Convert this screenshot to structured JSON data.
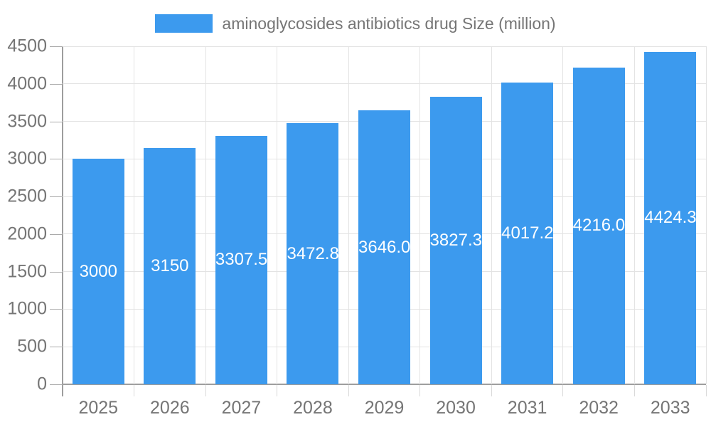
{
  "colors": {
    "accent": "#3c9aee",
    "axis_text": "#757575",
    "grid": "#e3e3e3",
    "axis_line": "#9e9e9e",
    "bar_label": "#ffffff"
  },
  "chart_data": {
    "type": "bar",
    "title": "aminoglycosides antibiotics drug Size (million)",
    "xlabel": "",
    "ylabel": "",
    "categories": [
      "2025",
      "2026",
      "2027",
      "2028",
      "2029",
      "2030",
      "2031",
      "2032",
      "2033"
    ],
    "values": [
      3000,
      3150,
      3307.5,
      3472.87,
      3646.01,
      3827.31,
      4017.23,
      4216.09,
      4424.39
    ],
    "value_labels": [
      "3000",
      "3150",
      "3307.5",
      "3472.87",
      "3646.01",
      "3827.31",
      "4017.23",
      "4216.09",
      "4424.39"
    ],
    "ylim": [
      0,
      4500
    ],
    "yticks": [
      0,
      500,
      1000,
      1500,
      2000,
      2500,
      3000,
      3500,
      4000,
      4500
    ],
    "grid": true,
    "legend_position": "top",
    "bar_color": "#3c9aee",
    "value_label_position": "inside-center"
  }
}
